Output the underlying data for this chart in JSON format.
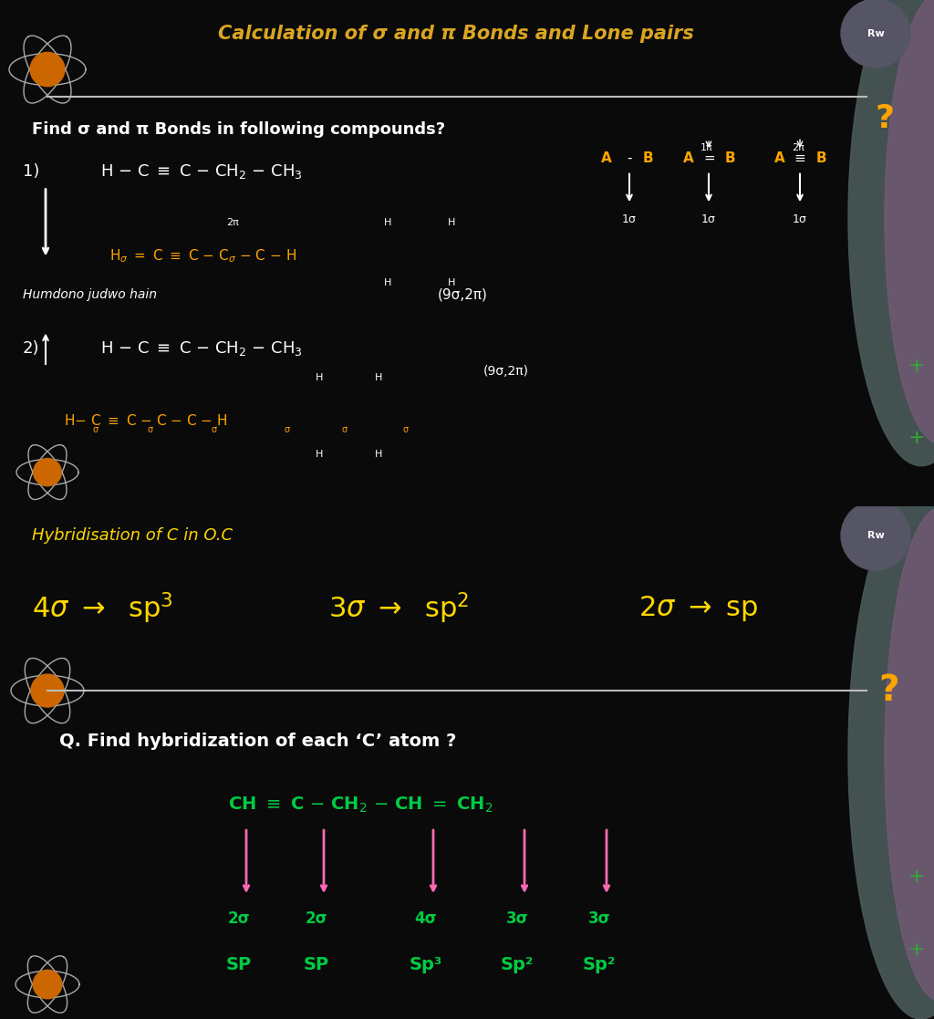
{
  "title_color": "#DAA520",
  "white_color": "#FFFFFF",
  "orange_color": "#FFA500",
  "yellow_color": "#FFD700",
  "green_color": "#00CC44",
  "pink_color": "#FF69B4",
  "bg_dark": "#0a0a0a",
  "panel_sep": 0.503,
  "title_text": "Calculation of σ and π Bonds and Lone pairs",
  "find_text": "Find σ and π Bonds in following compounds?",
  "hybrid_title": "Hybridisation of C in O.C",
  "q_find": "Q. Find hybridization of each ‘C’ atom ?",
  "labels_sigma": [
    "2σ",
    "2σ",
    "4σ",
    "3σ",
    "3σ"
  ],
  "labels_hybrid": [
    "SP",
    "SP",
    "Sp³",
    "Sp²",
    "Sp²"
  ],
  "result1": "(9σ,2π)",
  "result2": "(9σ,2π)"
}
